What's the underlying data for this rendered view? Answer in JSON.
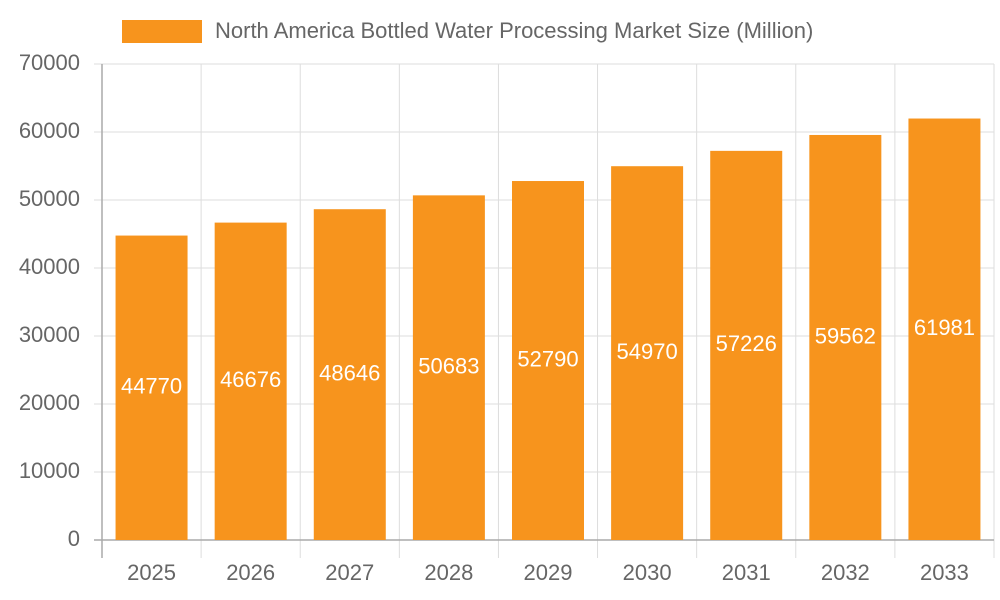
{
  "chart_data": {
    "type": "bar",
    "categories": [
      "2025",
      "2026",
      "2027",
      "2028",
      "2029",
      "2030",
      "2031",
      "2032",
      "2033"
    ],
    "series": [
      {
        "name": "North America Bottled Water Processing Market Size (Million)",
        "color": "#f7941d",
        "values": [
          44770,
          46676,
          48646,
          50683,
          52790,
          54970,
          57226,
          59562,
          61981
        ]
      }
    ],
    "ylim": [
      0,
      70000
    ],
    "yticks": [
      0,
      10000,
      20000,
      30000,
      40000,
      50000,
      60000,
      70000
    ],
    "grid": true,
    "legend": "top",
    "data_labels": true
  }
}
